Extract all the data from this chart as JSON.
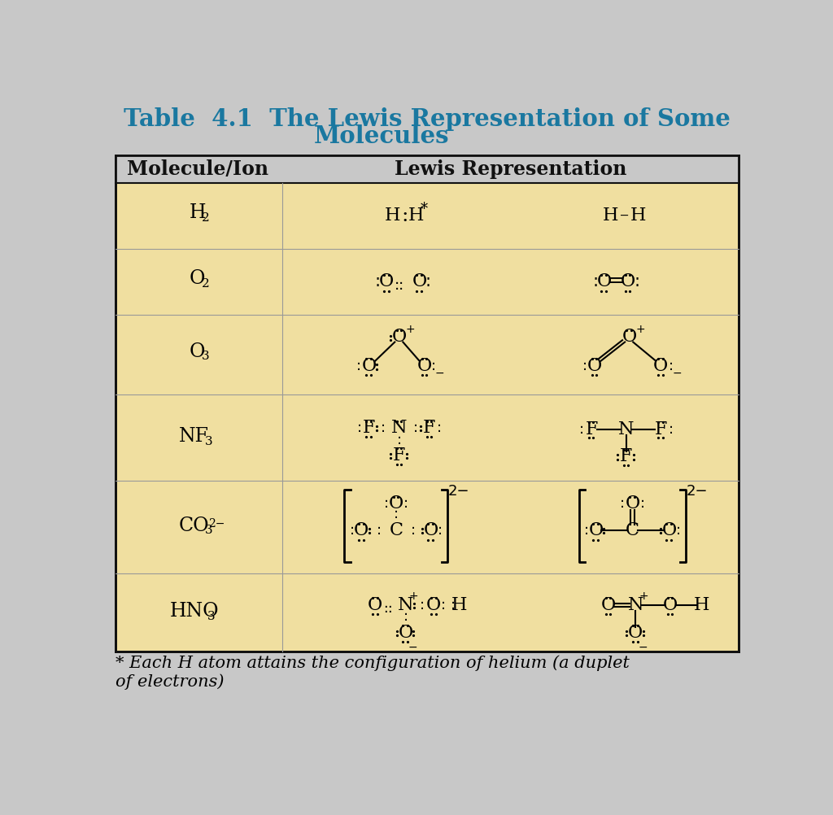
{
  "title_line1": "Table  4.1  The Lewis Representation of Some",
  "title_line2": "Molecules",
  "title_color": "#1a78a0",
  "title_fontsize": 21,
  "bg_color": "#f0dfa0",
  "header_bg": "#c8c8c8",
  "outer_bg": "#c8c8c8",
  "table_border_color": "#111111",
  "footnote": "* Each H atom attains the configuration of helium (a duplet\nof electrons)",
  "footnote_fontsize": 15,
  "col_header_left": "Molecule/Ion",
  "col_header_right": "Lewis Representation",
  "col_header_fontsize": 17
}
